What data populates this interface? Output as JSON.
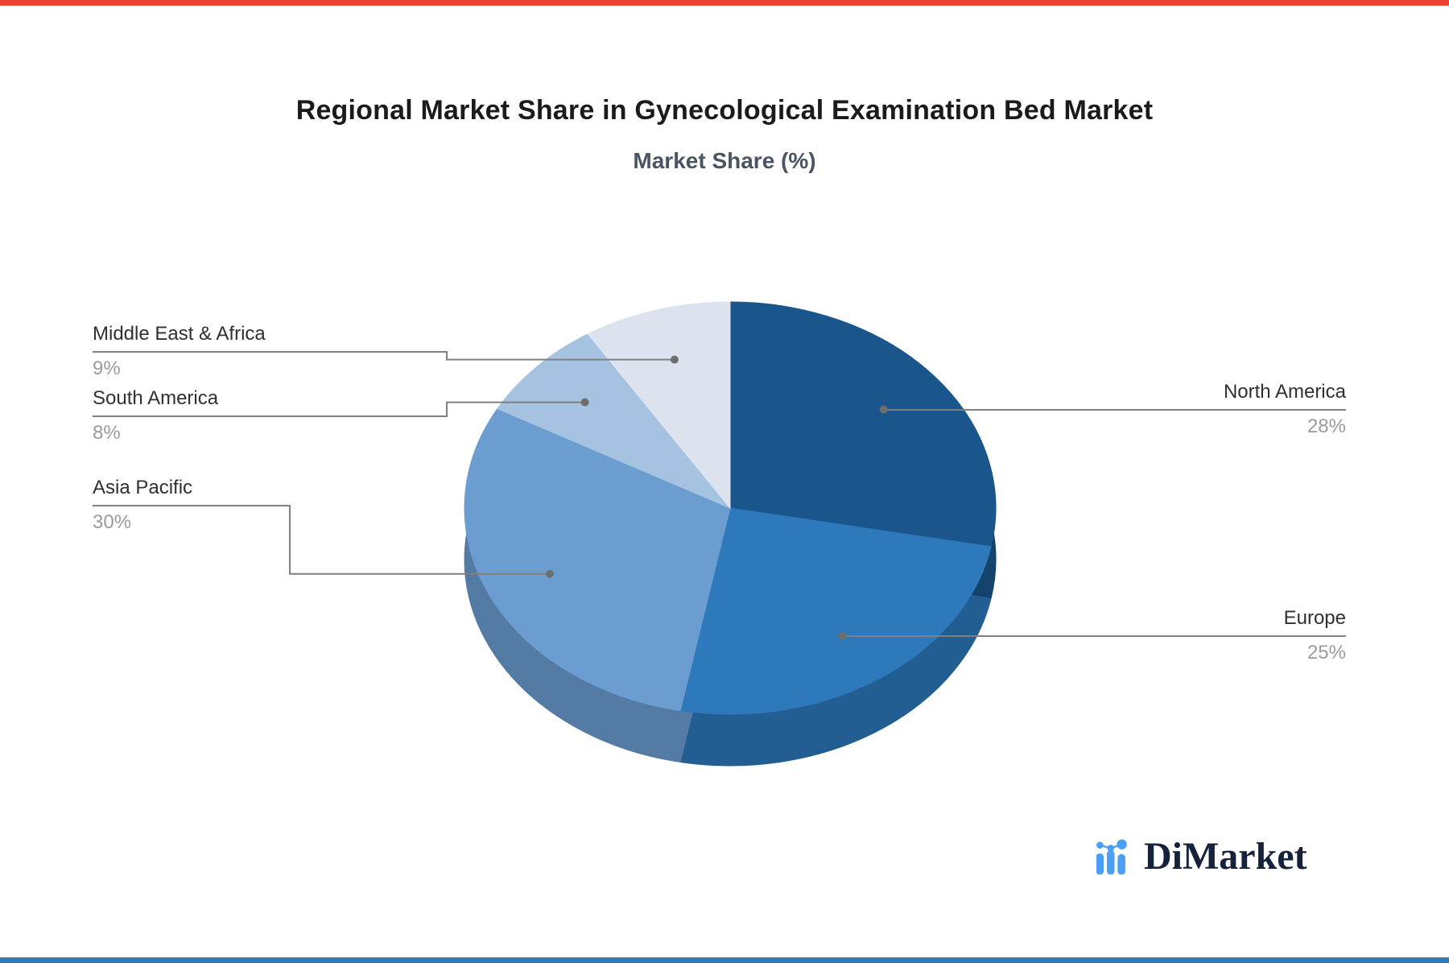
{
  "page": {
    "background_color": "#ffffff",
    "top_strip_color": "#e8432d",
    "bottom_strip_color": "#2d79bb"
  },
  "header": {
    "title": "Regional Market Share in Gynecological Examination Bed Market",
    "subtitle": "Market Share (%)"
  },
  "chart_data": {
    "type": "pie",
    "style": "3d",
    "title": "Regional Market Share in Gynecological Examination Bed Market",
    "subtitle": "Market Share (%)",
    "unit": "%",
    "start_angle_deg": 0,
    "direction": "clockwise",
    "legend": "none",
    "slices": [
      {
        "label": "North America",
        "value": 28,
        "display_value": "28%",
        "color": "#1a568c",
        "side_color": "#14436d",
        "label_side": "right"
      },
      {
        "label": "Europe",
        "value": 25,
        "display_value": "25%",
        "color": "#2d79bb",
        "side_color": "#235e92",
        "label_side": "right"
      },
      {
        "label": "Asia Pacific",
        "value": 30,
        "display_value": "30%",
        "color": "#6b9dd1",
        "side_color": "#537ba3",
        "label_side": "left"
      },
      {
        "label": "South America",
        "value": 8,
        "display_value": "8%",
        "color": "#a5c3e1",
        "side_color": "#81a0bd",
        "label_side": "left"
      },
      {
        "label": "Middle East & Africa",
        "value": 9,
        "display_value": "9%",
        "color": "#dde3ee",
        "side_color": "#aebbd1",
        "label_side": "left"
      }
    ],
    "label_name_color": "#303030",
    "label_value_color": "#9b9b9b",
    "connector_color": "#808080",
    "connector_dot_color": "#6e6e6e"
  },
  "branding": {
    "logo_text": "DiMarket",
    "logo_text_color": "#16213c",
    "logo_icon": "bar-chart-trend-icon",
    "logo_icon_color": "#4b9ff6"
  }
}
